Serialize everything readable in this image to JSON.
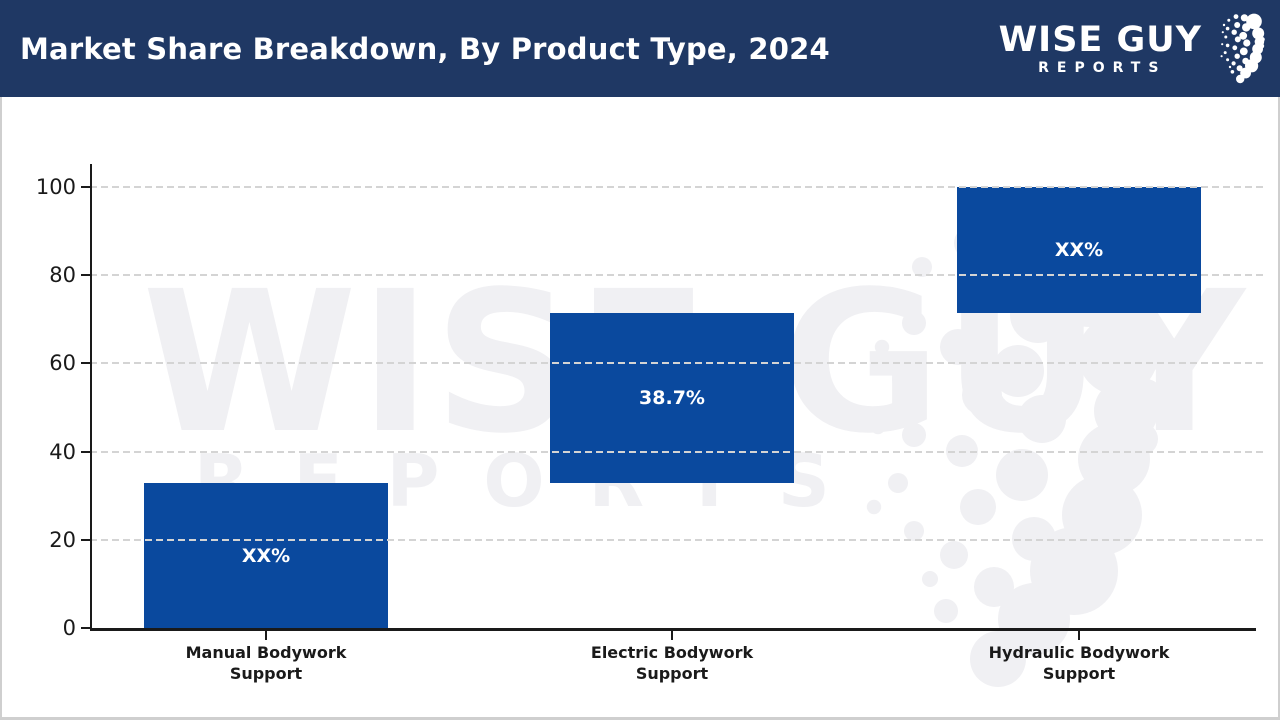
{
  "header": {
    "title": "Market Share Breakdown, By Product Type, 2024",
    "logo": {
      "name": "WISE GUY REPORTS",
      "line1": "WISE GUY",
      "line2": "REPORTS"
    }
  },
  "watermark": {
    "line1": "WISE GUY",
    "line2": "REPORTS"
  },
  "chart_data": {
    "type": "bar",
    "subtype": "floating_stacked_percentage",
    "title": "Market Share Breakdown, By Product Type, 2024",
    "categories": [
      "Manual Bodywork\nSupport",
      "Electric Bodywork\nSupport",
      "Hydraulic Bodywork\nSupport"
    ],
    "series": [
      {
        "name": "Manual Bodywork Support",
        "start": 0,
        "end": 32.8,
        "label": "XX%"
      },
      {
        "name": "Electric Bodywork Support",
        "start": 32.8,
        "end": 71.5,
        "label": "38.7%"
      },
      {
        "name": "Hydraulic Bodywork Support",
        "start": 71.5,
        "end": 100,
        "label": "XX%"
      }
    ],
    "xlabel": "",
    "ylabel": "",
    "yticks": [
      0,
      20,
      40,
      60,
      80,
      100
    ],
    "ylim": [
      0,
      105
    ],
    "grid": "horizontal-dashed",
    "legend": "none",
    "bar_color": "#0a499e",
    "bar_label_color": "#ffffff"
  },
  "colors": {
    "header_bg": "#1f3864",
    "bar": "#0a499e",
    "gridline": "#d4d4d4",
    "axis": "#1a1a1a",
    "watermark": "#f0f0f3",
    "page_bg": "#ffffff"
  }
}
